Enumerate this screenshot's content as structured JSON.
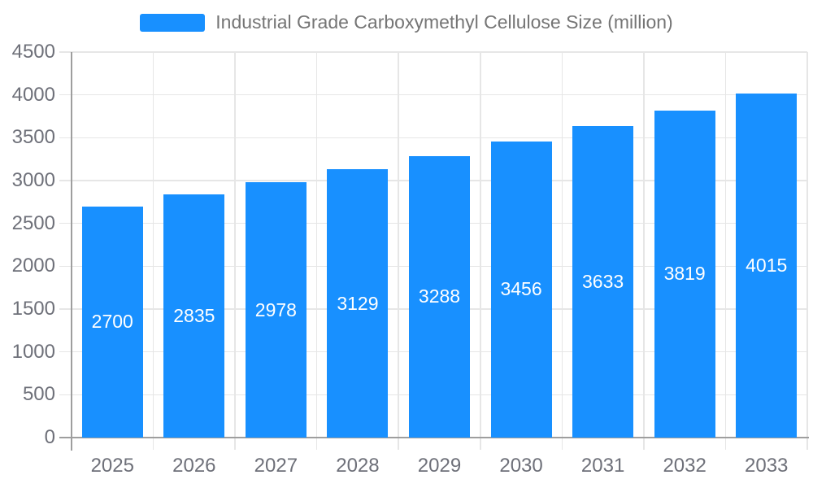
{
  "chart_data": {
    "type": "bar",
    "title": "Industrial Grade Carboxymethyl Cellulose Size (million)",
    "categories": [
      "2025",
      "2026",
      "2027",
      "2028",
      "2029",
      "2030",
      "2031",
      "2032",
      "2033"
    ],
    "values": [
      2700,
      2835,
      2978,
      3129,
      3288,
      3456,
      3633,
      3819,
      4015
    ],
    "value_labels": [
      "2700",
      "2835",
      "2978",
      "3129",
      "3288",
      "3456",
      "3633",
      "3819",
      "4015"
    ],
    "xlabel": "",
    "ylabel": "",
    "ylim": [
      0,
      4500
    ],
    "y_ticks": [
      0,
      500,
      1000,
      1500,
      2000,
      2500,
      3000,
      3500,
      4000,
      4500
    ],
    "y_tick_labels": [
      "0",
      "500",
      "1000",
      "1500",
      "2000",
      "2500",
      "3000",
      "3500",
      "4000",
      "4500"
    ],
    "grid": true,
    "legend_position": "top",
    "colors": {
      "bar": "#1890ff",
      "bar_value_text": "#ffffff",
      "axis_text": "#6e7079",
      "legend_text": "#757575",
      "gridline": "#e6e6e6",
      "axis_line": "#9e9e9e",
      "background": "#ffffff"
    }
  }
}
